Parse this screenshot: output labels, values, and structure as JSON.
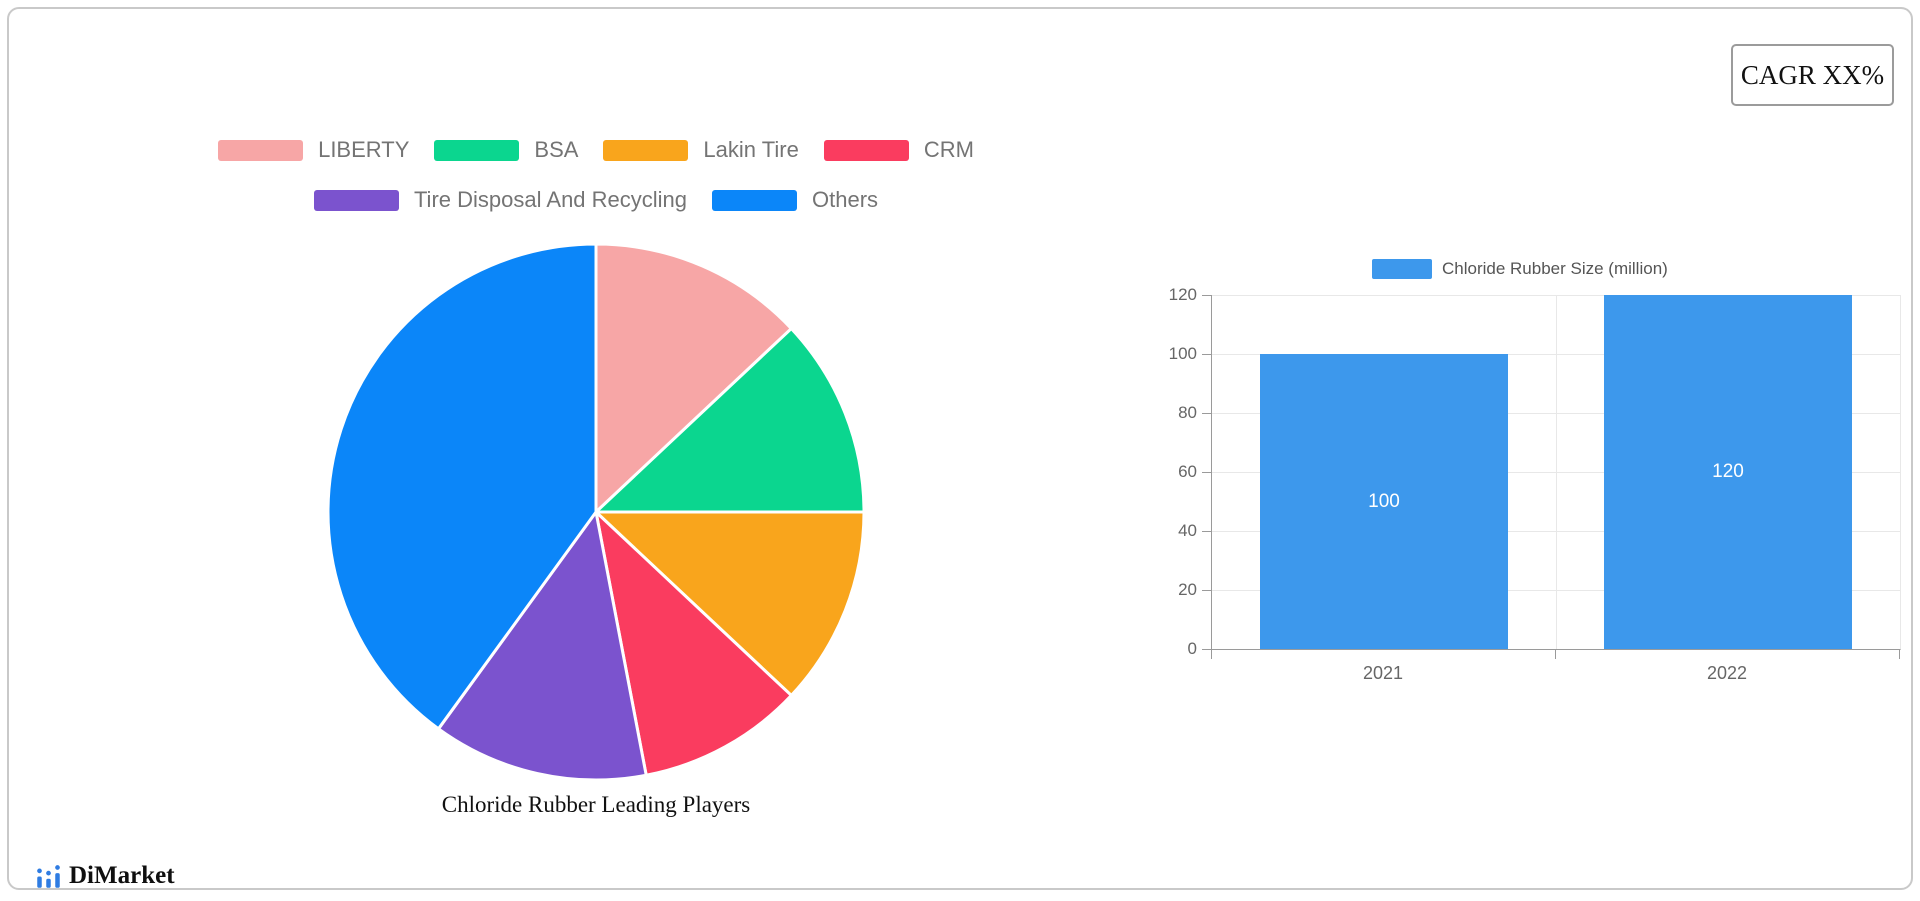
{
  "cagr": {
    "label": "CAGR XX%"
  },
  "logo": {
    "text": "DiMarket",
    "icon_color": "#2f7ce2"
  },
  "chart_data": [
    {
      "type": "pie",
      "title": "Chloride Rubber Leading Players",
      "legend_position": "top",
      "legend_rows": [
        4,
        2
      ],
      "slices": [
        {
          "label": "LIBERTY",
          "value": 13,
          "color": "#f7a6a6"
        },
        {
          "label": "BSA",
          "value": 12,
          "color": "#0bd68f"
        },
        {
          "label": "Lakin Tire",
          "value": 12,
          "color": "#f9a51c"
        },
        {
          "label": "CRM",
          "value": 10,
          "color": "#fa3c5f"
        },
        {
          "label": "Tire Disposal And Recycling",
          "value": 13,
          "color": "#7b53ce"
        },
        {
          "label": "Others",
          "value": 40,
          "color": "#0b86f9"
        }
      ],
      "start_angle_deg": 0,
      "direction": "clockwise",
      "slice_border_color": "#ffffff"
    },
    {
      "type": "bar",
      "legend": "Chloride Rubber Size (million)",
      "categories": [
        "2021",
        "2022"
      ],
      "series": [
        {
          "name": "Chloride Rubber Size (million)",
          "values": [
            100,
            120
          ]
        }
      ],
      "bar_color": "#3d98ec",
      "value_label_style": "inside-white",
      "ylim": [
        0,
        120
      ],
      "y_ticks": [
        0,
        20,
        40,
        60,
        80,
        100,
        120
      ],
      "grid": true,
      "legend_position": "top"
    }
  ]
}
